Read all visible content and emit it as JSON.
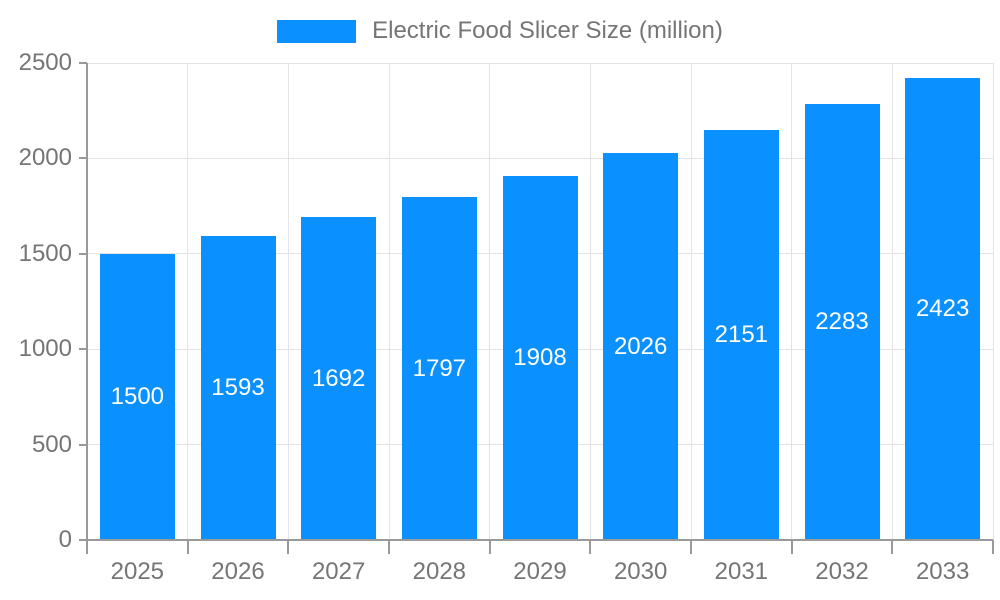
{
  "chart_data": {
    "type": "bar",
    "title": "Electric Food Slicer Size (million)",
    "legend": [
      "Electric Food Slicer Size (million)"
    ],
    "categories": [
      "2025",
      "2026",
      "2027",
      "2028",
      "2029",
      "2030",
      "2031",
      "2032",
      "2033"
    ],
    "series": [
      {
        "name": "Electric Food Slicer Size (million)",
        "values": [
          1500,
          1593,
          1692,
          1797,
          1908,
          2026,
          2151,
          2283,
          2423
        ]
      }
    ],
    "xlabel": "",
    "ylabel": "",
    "ylim": [
      0,
      2500
    ],
    "yticks": [
      0,
      500,
      1000,
      1500,
      2000,
      2500
    ],
    "grid": true,
    "legend_position": "top-center",
    "bar_labels_inside": true,
    "colors": {
      "bar": "#0A90FF",
      "bar_label": "#FFFFFF",
      "axis_text": "#757575",
      "legend_text": "#757575",
      "gridline": "#E3E3E3",
      "axis_line": "#999999",
      "background": "#FFFFFF"
    }
  }
}
